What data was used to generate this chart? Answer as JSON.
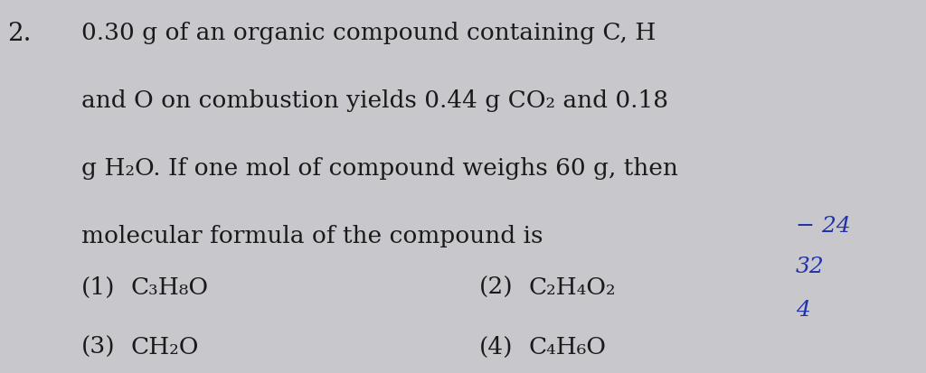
{
  "background_color": "#c8c8cc",
  "question_number": "2.",
  "main_text_lines": [
    "0.30 g of an organic compound containing C, H",
    "and O on combustion yields 0.44 g CO₂ and 0.18",
    "g H₂O. If one mol of compound weighs 60 g, then",
    "molecular formula of the compound is"
  ],
  "options": [
    {
      "num": "(1)",
      "formula": "C₃H₈O"
    },
    {
      "num": "(2)",
      "formula": "C₂H₄O₂"
    },
    {
      "num": "(3)",
      "formula": "CH₂O"
    },
    {
      "num": "(4)",
      "formula": "C₄H₆O"
    }
  ],
  "handwritten_lines": [
    "− 24",
    "32",
    "4"
  ],
  "text_color": "#1a1a1a",
  "handwritten_color": "#2233aa",
  "font_size_main": 19,
  "font_size_options": 19,
  "font_size_number": 20,
  "font_size_handwritten": 18
}
